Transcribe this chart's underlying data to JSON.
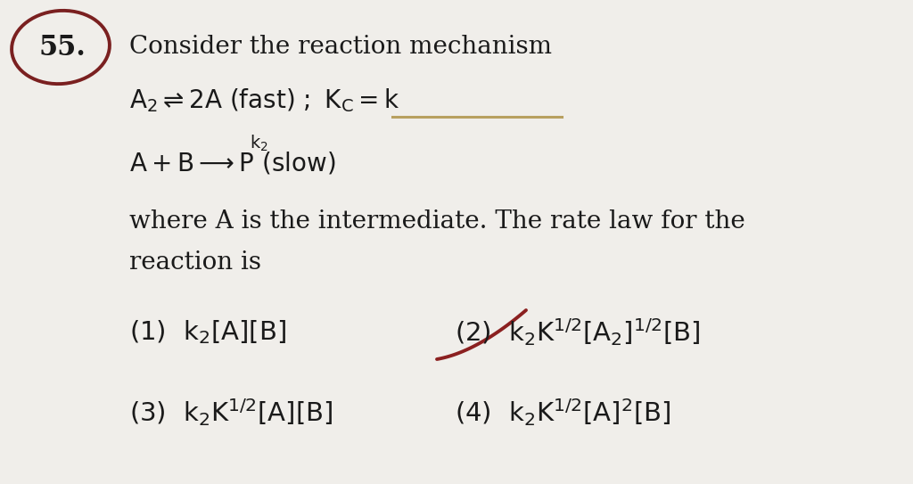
{
  "bg_color": "#f0eeea",
  "text_color": "#1a1a1a",
  "question_number": "55.",
  "title_text": "Consider the reaction mechanism",
  "underline_color": "#b8a060",
  "strikethrough_color": "#8b2020",
  "circle_color": "#7a2020",
  "fig_width": 10.24,
  "fig_height": 5.43,
  "dpi": 100
}
